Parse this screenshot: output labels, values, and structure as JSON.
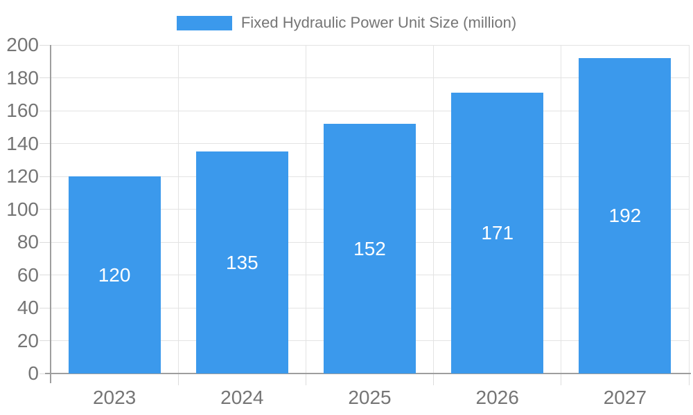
{
  "legend": {
    "label": "Fixed Hydraulic Power Unit Size (million)"
  },
  "colors": {
    "bar": "#3B99EC",
    "grid": "#E3E3E3",
    "tick": "#DCDCDC",
    "axis": "#9E9E9E",
    "tick_label": "#757575",
    "value_label": "#FFFFFF",
    "background": "#FFFFFF"
  },
  "chart_data": {
    "type": "bar",
    "title": "",
    "xlabel": "",
    "ylabel": "",
    "categories": [
      "2023",
      "2024",
      "2025",
      "2026",
      "2027"
    ],
    "series": [
      {
        "name": "Fixed Hydraulic Power Unit Size (million)",
        "values": [
          120,
          135,
          152,
          171,
          192
        ]
      }
    ],
    "value_labels": [
      120,
      135,
      152,
      171,
      192
    ],
    "ylim": [
      0,
      200
    ],
    "y_ticks": [
      0,
      20,
      40,
      60,
      80,
      100,
      120,
      140,
      160,
      180,
      200
    ],
    "grid": true,
    "legend_position": "top",
    "value_label_position": "inside-center"
  }
}
